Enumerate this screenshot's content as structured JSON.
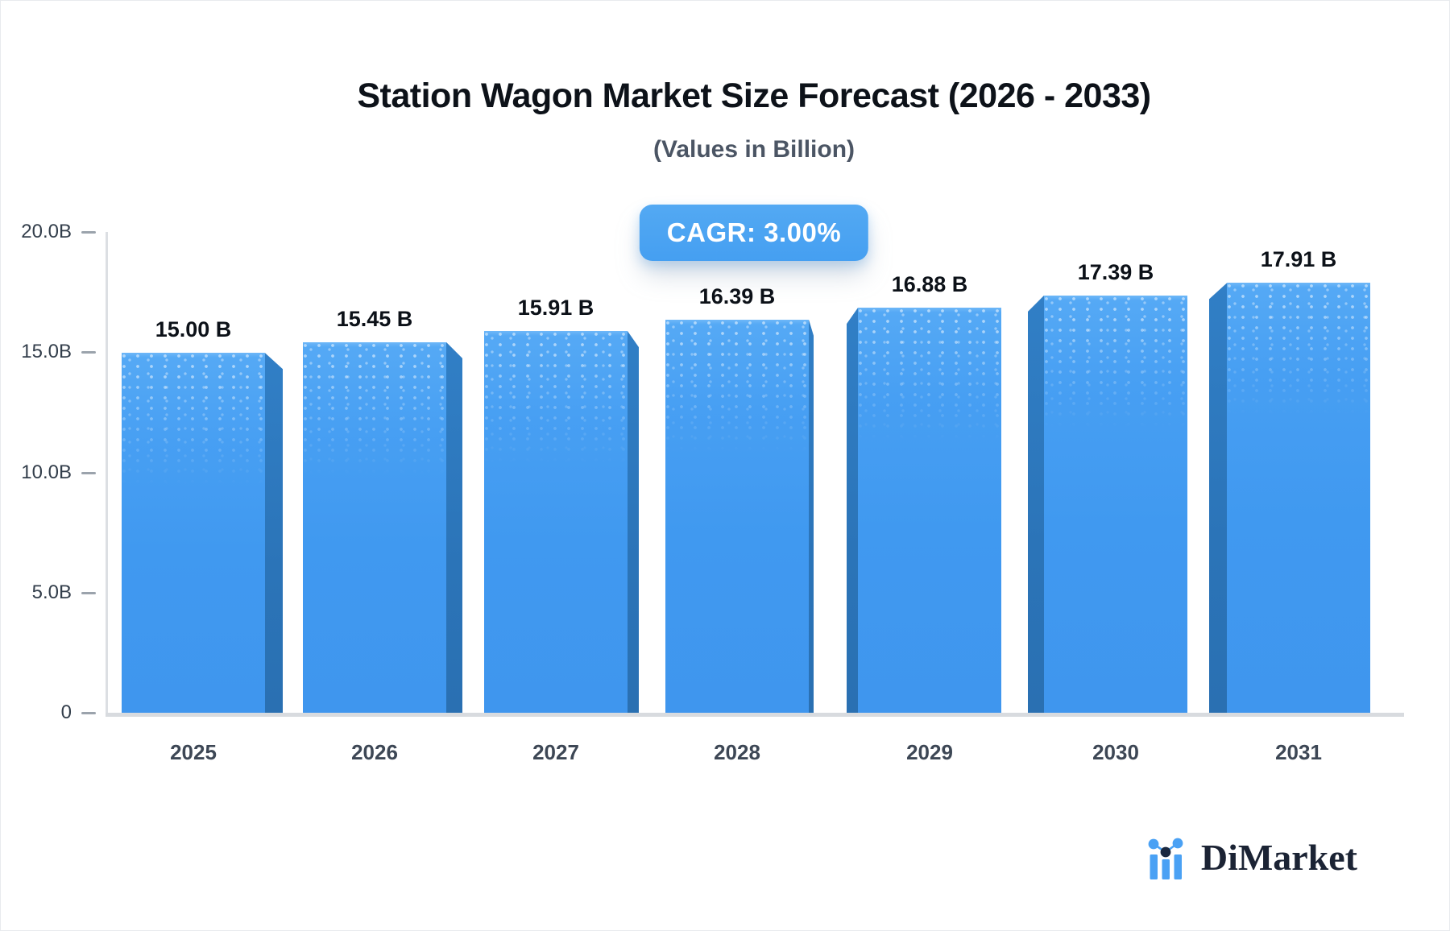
{
  "chart": {
    "title": "Station Wagon Market Size Forecast (2026 - 2033)",
    "subtitle": "(Values in Billion)",
    "cagr_label": "CAGR: 3.00%"
  },
  "chart_data": {
    "type": "bar",
    "categories": [
      "2025",
      "2026",
      "2027",
      "2028",
      "2029",
      "2030",
      "2031"
    ],
    "values": [
      15.0,
      15.45,
      15.91,
      16.39,
      16.88,
      17.39,
      17.91
    ],
    "bar_labels": [
      "15.00 B",
      "15.45 B",
      "15.91 B",
      "16.39 B",
      "16.88 B",
      "17.39 B",
      "17.91 B"
    ],
    "title": "Station Wagon Market Size Forecast (2026 - 2033)",
    "subtitle": "(Values in Billion)",
    "cagr_text": "CAGR: 3.00%",
    "xlabel": "",
    "ylabel": "",
    "ylim": [
      0,
      20
    ],
    "yticks": {
      "values": [
        0,
        5,
        10,
        15,
        20
      ],
      "labels": [
        "0",
        "5.0B",
        "10.0B",
        "15.0B",
        "20.0B"
      ]
    },
    "grid": false,
    "legend": null,
    "bar_color": "#3f9ff2",
    "bar_side_color": "#2d7abf",
    "accent_color": "#4aa3f1",
    "label_color": "#0c1118"
  },
  "logo": {
    "text": "DiMarket",
    "icon": "mini-bar-line-chart-icon"
  }
}
